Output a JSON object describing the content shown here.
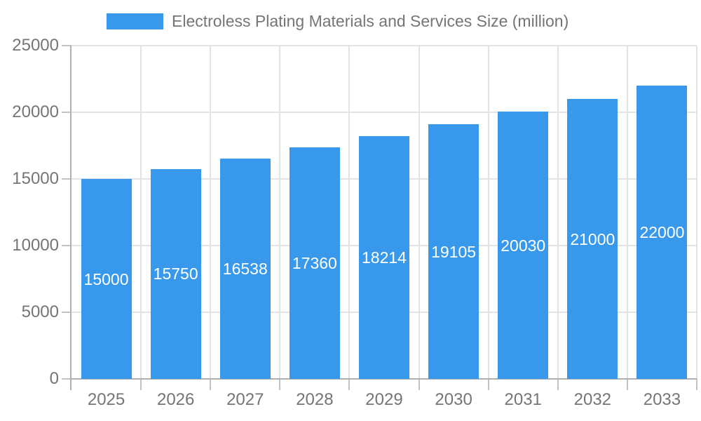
{
  "legend": {
    "label": "Electroless Plating Materials and Services Size (million)"
  },
  "chart_data": {
    "type": "bar",
    "title": "Electroless Plating Materials and Services Size (million)",
    "categories": [
      "2025",
      "2026",
      "2027",
      "2028",
      "2029",
      "2030",
      "2031",
      "2032",
      "2033"
    ],
    "values": [
      15000,
      15750,
      16538,
      17360,
      18214,
      19105,
      20030,
      21000,
      22000
    ],
    "bar_labels": [
      "15000",
      "15750",
      "16538",
      "17360",
      "18214",
      "19105",
      "20030",
      "21000",
      "22000"
    ],
    "xlabel": "",
    "ylabel": "",
    "ylim": [
      0,
      25000
    ],
    "yticks": [
      0,
      5000,
      10000,
      15000,
      20000,
      25000
    ],
    "ytick_labels": [
      "0",
      "5000",
      "10000",
      "15000",
      "20000",
      "25000"
    ],
    "grid": true,
    "legend_position": "top",
    "value_label_position": "inside-center"
  },
  "colors": {
    "bar": "#3899EC",
    "text": "#757575",
    "value_label_text": "#FFFFFF",
    "gridline": "#E3E3E3",
    "axis": "#B0B0B0",
    "tick": "#C2C2C2",
    "background": "#FFFFFF"
  }
}
